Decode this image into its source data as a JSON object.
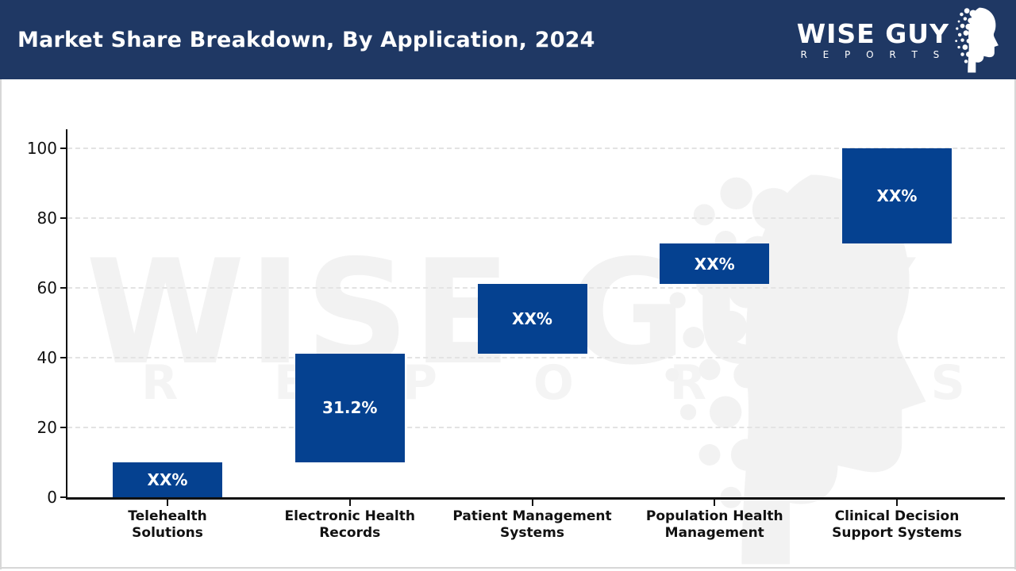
{
  "header": {
    "title": "Market Share Breakdown, By Application, 2024",
    "bg_color": "#1f3864",
    "logo": {
      "line1": "WISE GUY",
      "line2": "R E P O R T S"
    }
  },
  "watermark": {
    "line1": "WISE GUY",
    "line2": "R E P O R T S"
  },
  "chart_data": {
    "type": "bar",
    "subtype": "waterfall",
    "title": "Market Share Breakdown, By Application, 2024",
    "categories": [
      "Telehealth Solutions",
      "Electronic Health Records",
      "Patient Management Systems",
      "Population Health Management",
      "Clinical Decision Support Systems"
    ],
    "categories_lines": [
      [
        "Telehealth",
        "Solutions"
      ],
      [
        "Electronic Health",
        "Records"
      ],
      [
        "Patient Management",
        "Systems"
      ],
      [
        "Population Health",
        "Management"
      ],
      [
        "Clinical Decision",
        "Support Systems"
      ]
    ],
    "segments": [
      {
        "category": "Telehealth Solutions",
        "start": 0,
        "end": 10,
        "label": "XX%"
      },
      {
        "category": "Electronic Health Records",
        "start": 10,
        "end": 41.2,
        "label": "31.2%"
      },
      {
        "category": "Patient Management Systems",
        "start": 41.2,
        "end": 61.2,
        "label": "XX%"
      },
      {
        "category": "Population Health Management",
        "start": 61.2,
        "end": 72.7,
        "label": "XX%"
      },
      {
        "category": "Clinical Decision Support Systems",
        "start": 72.7,
        "end": 100,
        "label": "XX%"
      }
    ],
    "yticks": [
      0,
      20,
      40,
      60,
      80,
      100
    ],
    "ylim": [
      0,
      105.5
    ],
    "xlabel": "",
    "ylabel": "",
    "grid": "horizontal-dashed",
    "legend": "none",
    "bar_color": "#054190",
    "bar_label_color": "#ffffff",
    "axis_color": "#111111",
    "gridline_color": "#e3e3e3"
  }
}
